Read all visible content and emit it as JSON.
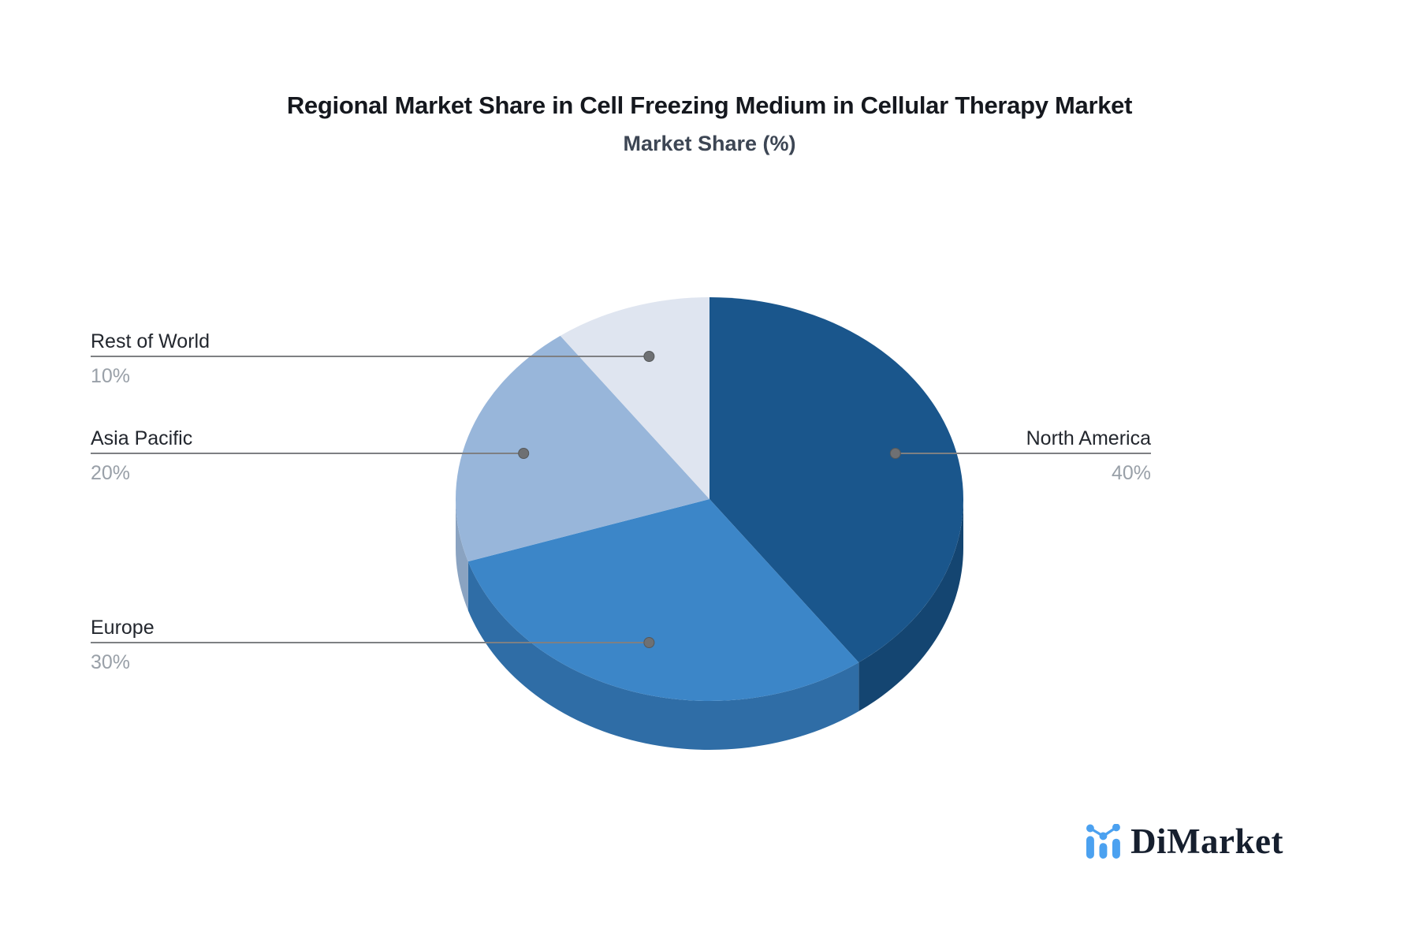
{
  "chart_data": {
    "type": "pie",
    "title": "Regional Market Share in Cell Freezing Medium in Cellular Therapy Market",
    "subtitle": "Market Share (%)",
    "unit": "%",
    "effect_3d": true,
    "start_angle_deg": 0,
    "direction": "clockwise",
    "slices": [
      {
        "label": "North America",
        "value": 40,
        "pct_label": "40%",
        "color": "#1a568c",
        "side_color": "#144571"
      },
      {
        "label": "Europe",
        "value": 30,
        "pct_label": "30%",
        "color": "#3c86c8",
        "side_color": "#2f6da6"
      },
      {
        "label": "Asia Pacific",
        "value": 20,
        "pct_label": "20%",
        "color": "#98b6da",
        "side_color": "#8aa3c1"
      },
      {
        "label": "Rest of World",
        "value": 10,
        "pct_label": "10%",
        "color": "#dfe5f0",
        "side_color": "#b9c3d3"
      }
    ],
    "legend_position": "callout-labels",
    "grid": false
  },
  "logo": {
    "text": "DiMarket",
    "icon": "bar-line-chart-icon",
    "icon_color": "#4ba1f0",
    "text_color": "#161f2e"
  },
  "colors": {
    "background": "#ffffff",
    "title": "#15181e",
    "subtitle": "#3d4654",
    "label_text": "#23272e",
    "pct_text": "#99a0a8",
    "leader_line": "#7e8083",
    "dot_fill": "#6e7073",
    "dot_stroke": "#55585a"
  }
}
